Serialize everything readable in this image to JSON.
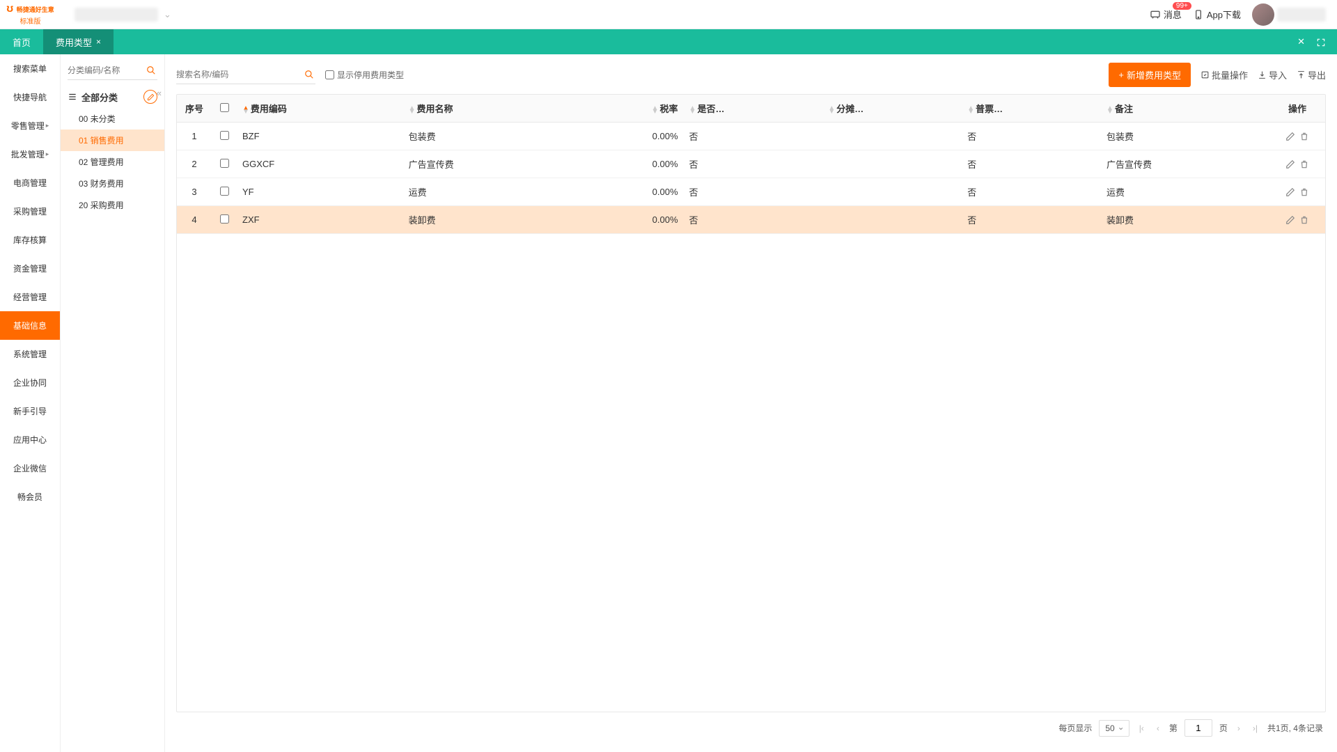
{
  "logo": {
    "brand_text": "畅捷通好生意",
    "sub": "标准版"
  },
  "header": {
    "msg_label": "消息",
    "msg_badge": "99+",
    "app_label": "App下载"
  },
  "tabs": [
    {
      "label": "首页",
      "closable": false,
      "active": false
    },
    {
      "label": "费用类型",
      "closable": true,
      "active": true
    }
  ],
  "sidebar": {
    "items": [
      {
        "label": "搜索菜单",
        "caret": false
      },
      {
        "label": "快捷导航",
        "caret": false
      },
      {
        "label": "零售管理",
        "caret": true
      },
      {
        "label": "批发管理",
        "caret": true
      },
      {
        "label": "电商管理",
        "caret": false
      },
      {
        "label": "采购管理",
        "caret": false
      },
      {
        "label": "库存核算",
        "caret": false
      },
      {
        "label": "资金管理",
        "caret": false
      },
      {
        "label": "经营管理",
        "caret": false
      },
      {
        "label": "基础信息",
        "caret": false,
        "active": true
      },
      {
        "label": "系统管理",
        "caret": false
      },
      {
        "label": "企业协同",
        "caret": false
      },
      {
        "label": "新手引导",
        "caret": false
      },
      {
        "label": "应用中心",
        "caret": false
      },
      {
        "label": "企业微信",
        "caret": false
      },
      {
        "label": "畅会员",
        "caret": false
      }
    ]
  },
  "category": {
    "search_placeholder": "分类编码/名称",
    "all_label": "全部分类",
    "items": [
      {
        "label": "00 未分类",
        "selected": false
      },
      {
        "label": "01 销售费用",
        "selected": true
      },
      {
        "label": "02 管理费用",
        "selected": false
      },
      {
        "label": "03 财务费用",
        "selected": false
      },
      {
        "label": "20 采购费用",
        "selected": false
      }
    ]
  },
  "toolbar": {
    "search_placeholder": "搜索名称/编码",
    "show_disabled_label": "显示停用费用类型",
    "new_btn": "新增费用类型",
    "batch_btn": "批量操作",
    "import_btn": "导入",
    "export_btn": "导出"
  },
  "table": {
    "columns": {
      "index": "序号",
      "code": "费用编码",
      "name": "费用名称",
      "rate": "税率",
      "is_x": "是否…",
      "share": "分摊…",
      "invoice": "普票…",
      "remark": "备注",
      "ops": "操作"
    },
    "rows": [
      {
        "idx": "1",
        "code": "BZF",
        "name": "包装费",
        "rate": "0.00%",
        "is_x": "否",
        "share": "",
        "invoice": "否",
        "remark": "包装费"
      },
      {
        "idx": "2",
        "code": "GGXCF",
        "name": "广告宣传费",
        "rate": "0.00%",
        "is_x": "否",
        "share": "",
        "invoice": "否",
        "remark": "广告宣传费"
      },
      {
        "idx": "3",
        "code": "YF",
        "name": "运费",
        "rate": "0.00%",
        "is_x": "否",
        "share": "",
        "invoice": "否",
        "remark": "运费"
      },
      {
        "idx": "4",
        "code": "ZXF",
        "name": "装卸费",
        "rate": "0.00%",
        "is_x": "否",
        "share": "",
        "invoice": "否",
        "remark": "装卸费",
        "highlighted": true
      }
    ]
  },
  "pagination": {
    "per_page_label": "每页显示",
    "per_page_value": "50",
    "page_prefix": "第",
    "page_value": "1",
    "page_suffix": "页",
    "summary": "共1页, 4条记录"
  }
}
